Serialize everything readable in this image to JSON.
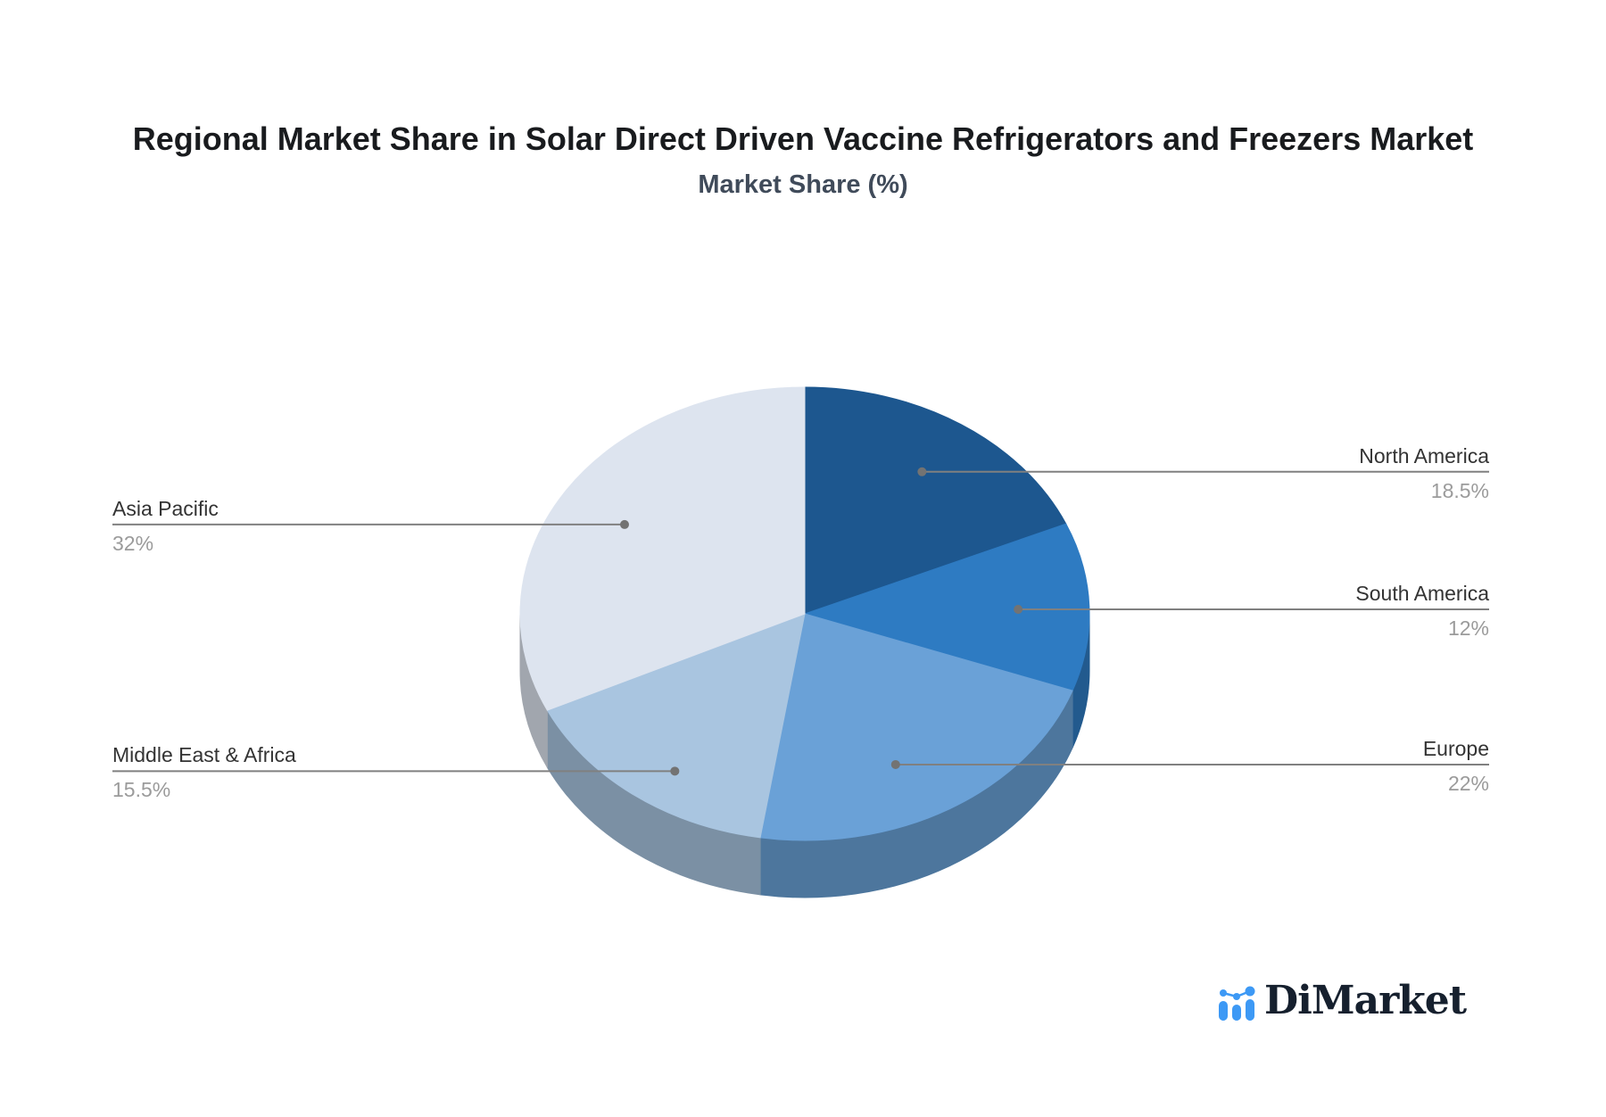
{
  "logo": {
    "text": "DiMarket"
  },
  "chart_data": {
    "type": "pie",
    "title": "Regional Market Share in Solar Direct Driven Vaccine Refrigerators and Freezers Market",
    "subtitle": "Market Share (%)",
    "unit": "%",
    "effect": "3d",
    "start_angle_deg": 0,
    "direction": "clockwise",
    "legend_position": "none",
    "labels_style": "outside-with-connector-lines",
    "series": [
      {
        "name": "North America",
        "value": 18.5,
        "label": "18.5%",
        "color": "#1d578f",
        "label_side": "right"
      },
      {
        "name": "South America",
        "value": 12,
        "label": "12%",
        "color": "#2e7bc2",
        "label_side": "right"
      },
      {
        "name": "Europe",
        "value": 22,
        "label": "22%",
        "color": "#6aa1d7",
        "label_side": "right"
      },
      {
        "name": "Middle East & Africa",
        "value": 15.5,
        "label": "15.5%",
        "color": "#a9c5e0",
        "label_side": "left"
      },
      {
        "name": "Asia Pacific",
        "value": 32,
        "label": "32%",
        "color": "#dde4ef",
        "label_side": "left"
      }
    ],
    "colors": {
      "label_name": "#333333",
      "label_percent": "#9b9b9b",
      "connector_line": "#808080",
      "connector_dot": "#737373",
      "title": "#191b1e",
      "subtitle": "#404b5a",
      "logo_text": "#16202e",
      "logo_icon_blue": "#3d99f5"
    }
  }
}
